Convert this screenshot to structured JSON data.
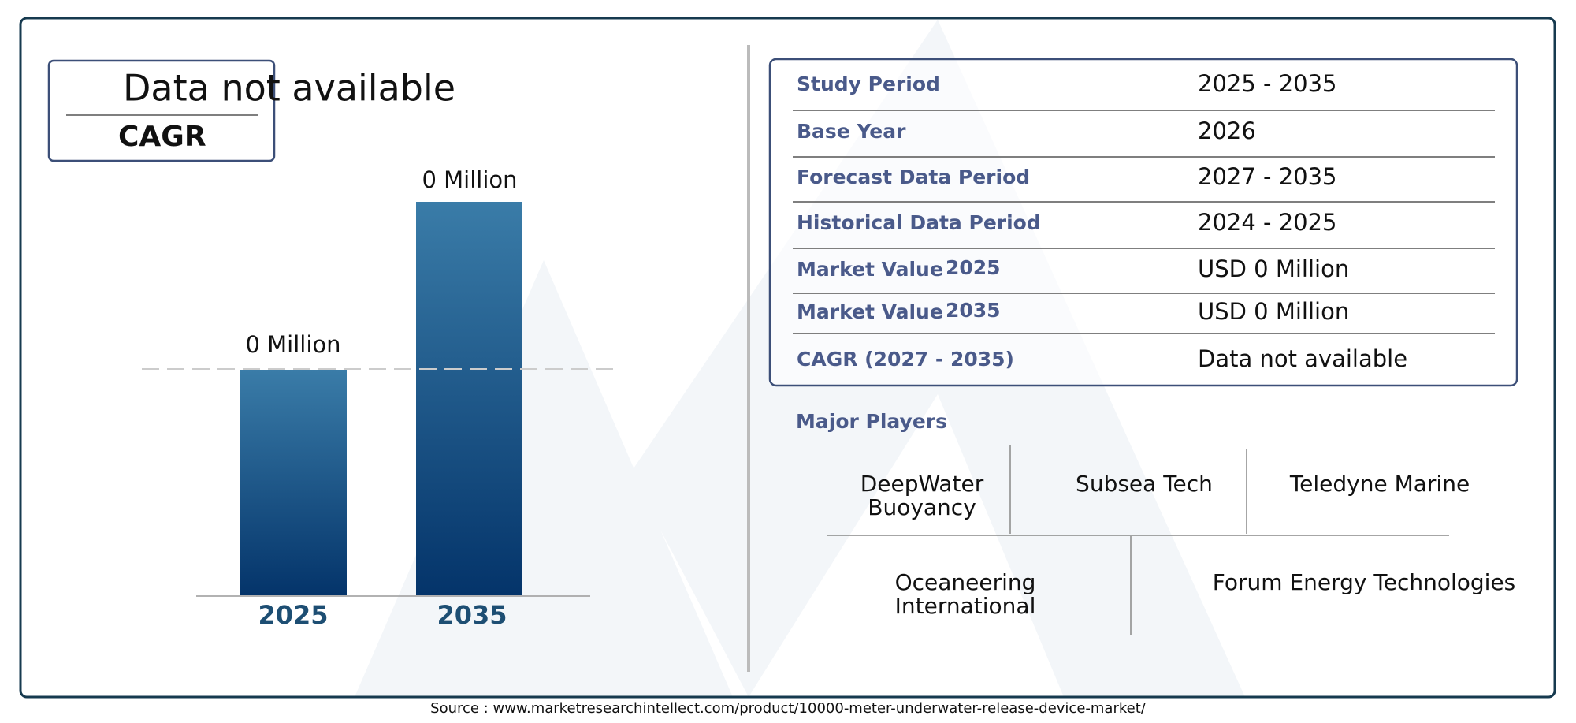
{
  "cagr_box": {
    "value": "Data not available",
    "label": "CAGR"
  },
  "bars": [
    {
      "label": "0 Million",
      "year": "2025"
    },
    {
      "label": "0 Million",
      "year": "2035"
    }
  ],
  "table": {
    "rows": [
      {
        "label": "Study Period",
        "value": "2025 - 2035"
      },
      {
        "label": "Base Year",
        "value": "2026"
      },
      {
        "label": "Forecast Data Period",
        "value": "2027 - 2035"
      },
      {
        "label": "Historical Data Period",
        "value": "2024 - 2025"
      },
      {
        "label": "Market Value",
        "year": "2025",
        "value": "USD 0 Million"
      },
      {
        "label": "Market Value",
        "year": "2035",
        "value": "USD 0 Million"
      },
      {
        "label": "CAGR (2027 - 2035)",
        "value": "Data not available"
      }
    ]
  },
  "major_players": {
    "title": "Major Players",
    "players": [
      "DeepWater Buoyancy",
      "Subsea Tech",
      "Teledyne Marine",
      "Oceaneering International",
      "Forum Energy Technologies"
    ]
  },
  "source": "Source : www.marketresearchintellect.com/product/10000-meter-underwater-release-device-market/"
}
